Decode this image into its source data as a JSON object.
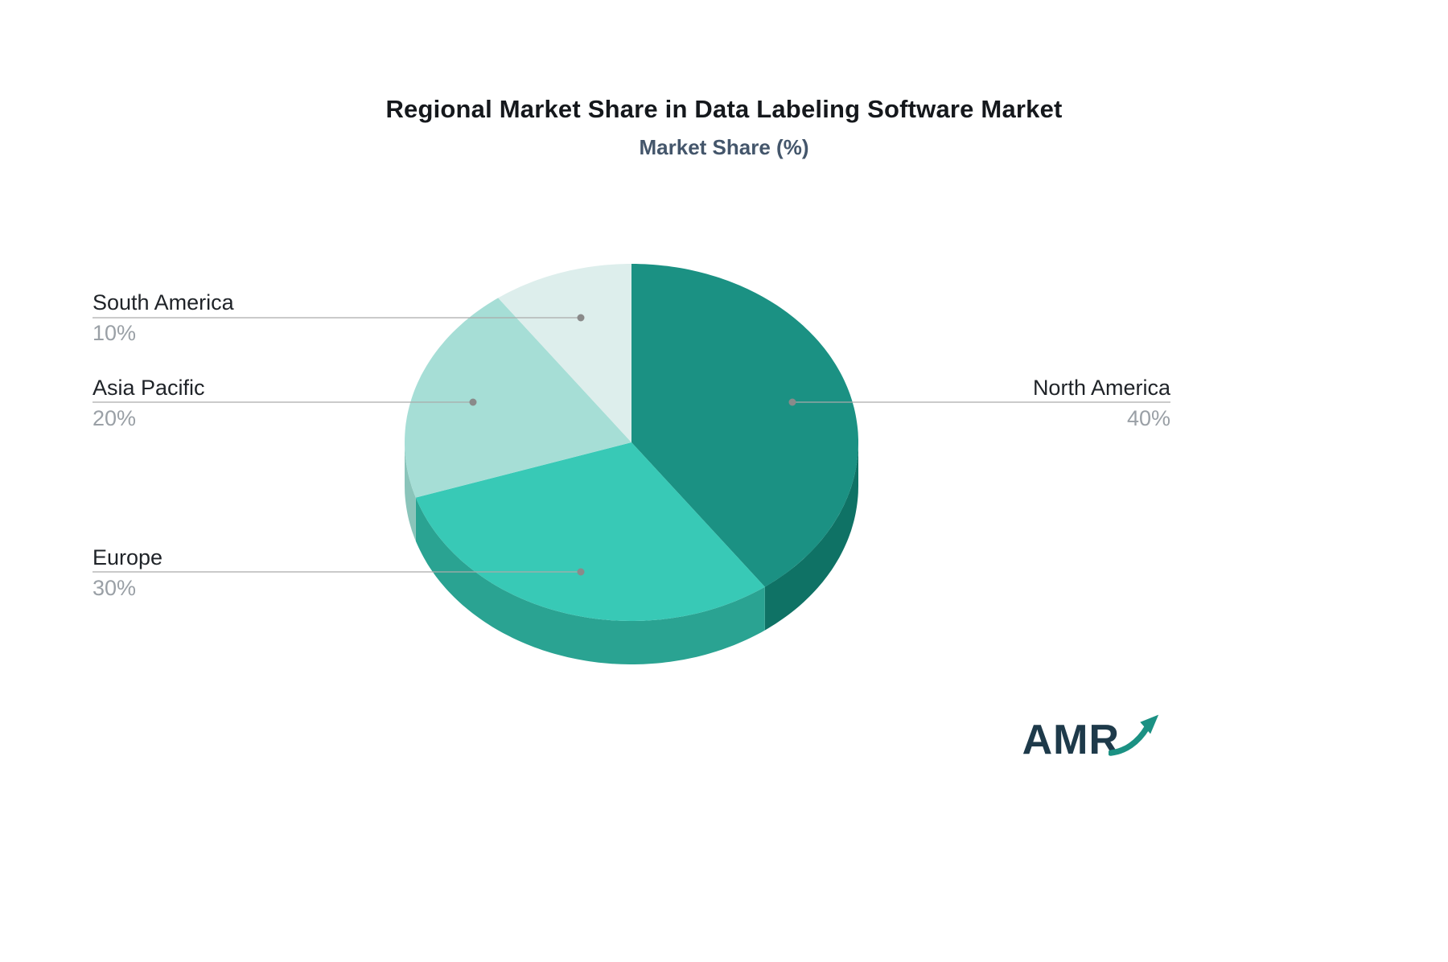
{
  "chart_data": {
    "type": "pie",
    "title": "Regional Market Share in Data Labeling Software Market",
    "subtitle": "Market Share (%)",
    "unit": "%",
    "direction": "clockwise",
    "start_angle_deg": 0,
    "legend_position": "none",
    "label_style": "leader-lines",
    "effect": "3d-depth",
    "series": [
      {
        "label": "North America",
        "value": 40,
        "value_label": "40%",
        "color": "#1b9183",
        "side_color": "#0f7265"
      },
      {
        "label": "Europe",
        "value": 30,
        "value_label": "30%",
        "color": "#38c9b6",
        "side_color": "#2aa392"
      },
      {
        "label": "Asia Pacific",
        "value": 20,
        "value_label": "20%",
        "color": "#a6ded6",
        "side_color": "#8ac4ba"
      },
      {
        "label": "South America",
        "value": 10,
        "value_label": "10%",
        "color": "#ddeeec",
        "side_color": "#bfd9d6"
      }
    ],
    "line_color": "#aaaaaa",
    "dot_color": "#8a8a8a"
  },
  "branding": {
    "logo_text": "AMR",
    "arrow_color": "#1b9183"
  }
}
